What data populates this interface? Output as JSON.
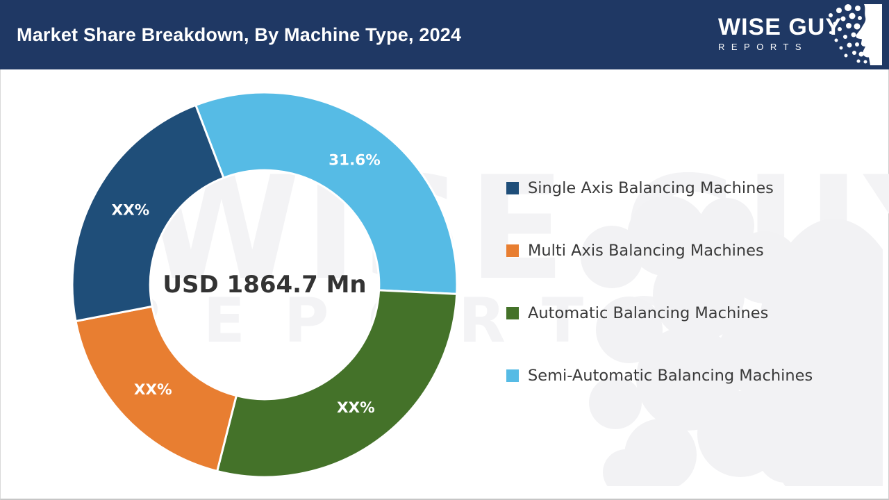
{
  "header": {
    "title": "Market Share Breakdown, By Machine Type, 2024",
    "logo": {
      "line1": "WISE GUY",
      "line2": "REPORTS"
    }
  },
  "watermark": {
    "line1": "WISE GUY",
    "line2": "REPORTS"
  },
  "chart_data": {
    "type": "pie",
    "subtype": "donut",
    "title": "Market Share Breakdown, By Machine Type, 2024",
    "center_label": "USD 1864.7 Mn",
    "start_angle_deg": -21,
    "inner_radius_ratio": 0.595,
    "legend_position": "right",
    "slices": [
      {
        "id": "semi_automatic",
        "label": "Semi-Automatic Balancing Machines",
        "display_value": "31.6%",
        "pct": 31.6,
        "color": "#56BBE5"
      },
      {
        "id": "automatic",
        "label": "Automatic Balancing Machines",
        "display_value": "XX%",
        "pct": 28.2,
        "color": "#447229"
      },
      {
        "id": "multi_axis",
        "label": "Multi Axis Balancing Machines",
        "display_value": "XX%",
        "pct": 18.0,
        "color": "#E87E31"
      },
      {
        "id": "single_axis",
        "label": "Single Axis Balancing Machines",
        "display_value": "XX%",
        "pct": 22.2,
        "color": "#1F4E79"
      }
    ],
    "legend_order": [
      3,
      2,
      1,
      0
    ]
  },
  "colors": {
    "header_bg": "#1F3864",
    "center_text": "#333333",
    "legend_text": "#3A3A3A",
    "watermark": "#F3F3F5",
    "slice_gap": "#FFFFFF"
  }
}
